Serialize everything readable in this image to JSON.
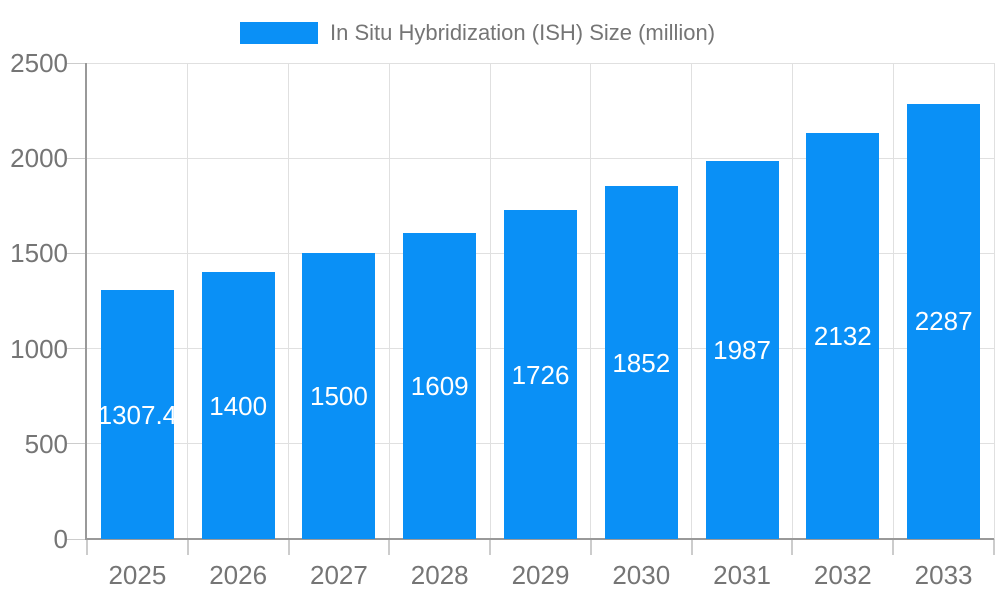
{
  "colors": {
    "bar": "#0a90f6",
    "axis_text": "#757575",
    "legend_text": "#757575",
    "grid_line": "#e0e0e0",
    "axis_line": "#999999",
    "tick": "#cccccc",
    "value_label": "#ffffff",
    "background": "#ffffff"
  },
  "legend": {
    "label": "In Situ Hybridization (ISH) Size (million)"
  },
  "chart_data": {
    "type": "bar",
    "title": "In Situ Hybridization (ISH) Size (million)",
    "categories": [
      "2025",
      "2026",
      "2027",
      "2028",
      "2029",
      "2030",
      "2031",
      "2032",
      "2033"
    ],
    "values": [
      1307.4,
      1400,
      1500,
      1609,
      1726,
      1852,
      1987,
      2132,
      2287
    ],
    "value_labels": [
      "1307.4",
      "1400",
      "1500",
      "1609",
      "1726",
      "1852",
      "1987",
      "2132",
      "2287"
    ],
    "xlabel": "",
    "ylabel": "",
    "ylim": [
      0,
      2500
    ],
    "yticks": [
      0,
      500,
      1000,
      1500,
      2000,
      2500
    ],
    "grid": "both",
    "legend_position": "top",
    "value_label_position": "inside-center"
  }
}
